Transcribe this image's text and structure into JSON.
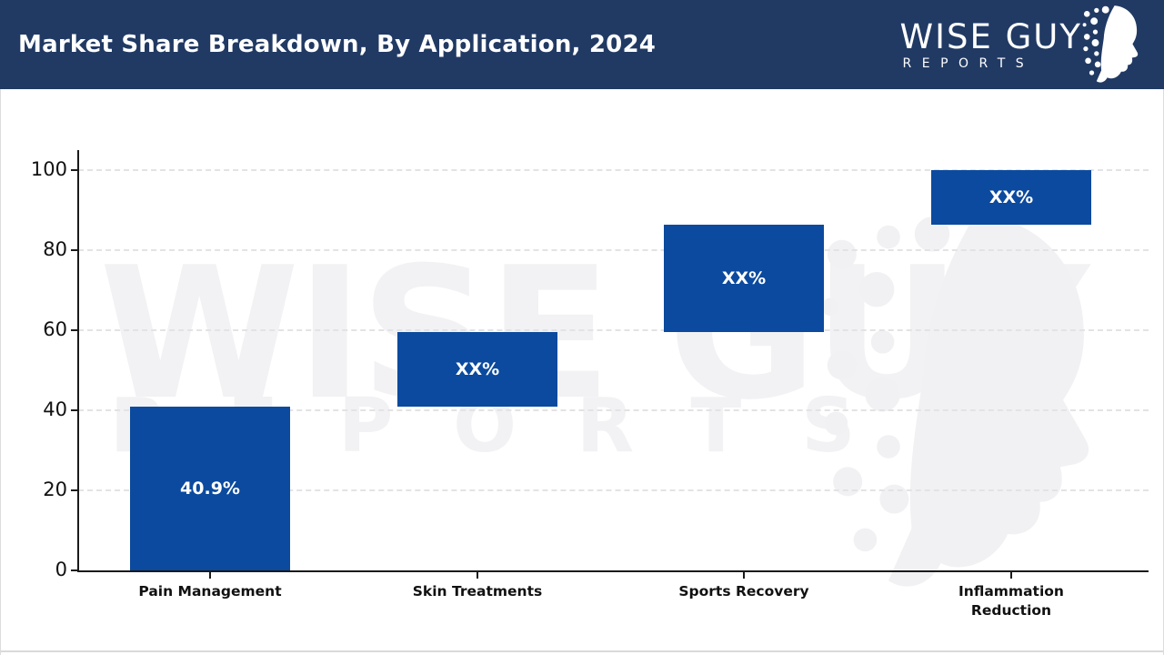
{
  "header": {
    "title": "Market Share Breakdown, By Application, 2024",
    "bg_color": "#213a64",
    "logo": {
      "line1": "WISE GUY",
      "line2": "REPORTS"
    }
  },
  "watermark": {
    "line1": "WISE GUY",
    "line2": "REPORTS"
  },
  "chart_data": {
    "type": "bar",
    "subtype": "waterfall",
    "title": "Market Share Breakdown, By Application, 2024",
    "categories": [
      "Pain Management",
      "Skin Treatments",
      "Sports Recovery",
      "Inflammation Reduction"
    ],
    "segments": [
      {
        "category": "Pain Management",
        "start": 0,
        "end": 40.9,
        "value": 40.9,
        "label": "40.9%"
      },
      {
        "category": "Skin Treatments",
        "start": 40.9,
        "end": 59.5,
        "value": 18.6,
        "label": "XX%"
      },
      {
        "category": "Sports Recovery",
        "start": 59.5,
        "end": 86.4,
        "value": 26.9,
        "label": "XX%"
      },
      {
        "category": "Inflammation Reduction",
        "start": 86.4,
        "end": 100,
        "value": 13.6,
        "label": "XX%"
      }
    ],
    "y_ticks": [
      0,
      20,
      40,
      60,
      80,
      100
    ],
    "ylim": [
      0,
      100
    ],
    "xlabel": "",
    "ylabel": "",
    "grid": "horizontal-dashed",
    "legend": "none",
    "bar_color": "#0b4a9e",
    "bar_label_color": "#ffffff",
    "axis_color": "#1a1a1a"
  }
}
